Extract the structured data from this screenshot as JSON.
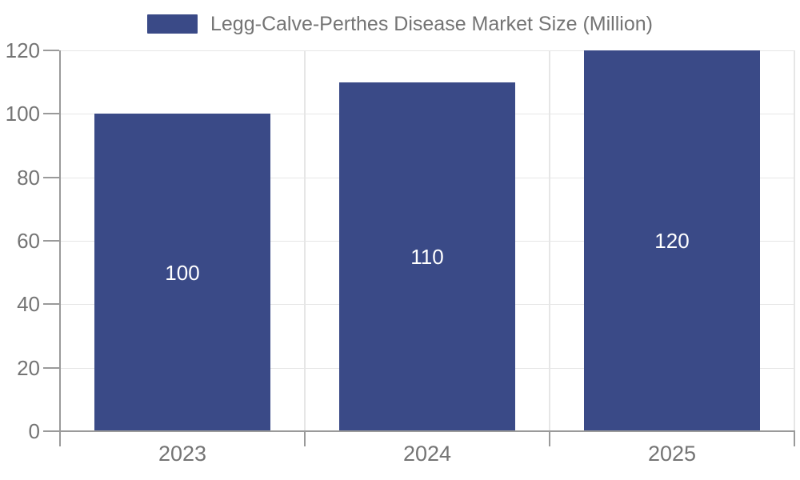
{
  "chart_data": {
    "type": "bar",
    "title": "Legg-Calve-Perthes Disease Market Size (Million)",
    "legend": [
      "Legg-Calve-Perthes Disease Market Size (Million)"
    ],
    "legend_position": "top",
    "categories": [
      "2023",
      "2024",
      "2025"
    ],
    "series": [
      {
        "name": "Legg-Calve-Perthes Disease Market Size (Million)",
        "values": [
          100,
          110,
          120
        ]
      }
    ],
    "data_labels": [
      "100",
      "110",
      "120"
    ],
    "xlabel": "",
    "ylabel": "",
    "ylim": [
      0,
      120
    ],
    "yticks": [
      0,
      20,
      40,
      60,
      80,
      100,
      120
    ],
    "grid": true,
    "colors": {
      "bar": "#3A4A87",
      "bar_label": "#FFFFFF",
      "axis_text": "#747474",
      "legend_text": "#747474",
      "axis_line": "#9A9A9A",
      "grid_line": "#E6E6E6",
      "background": "#FFFFFF"
    }
  }
}
